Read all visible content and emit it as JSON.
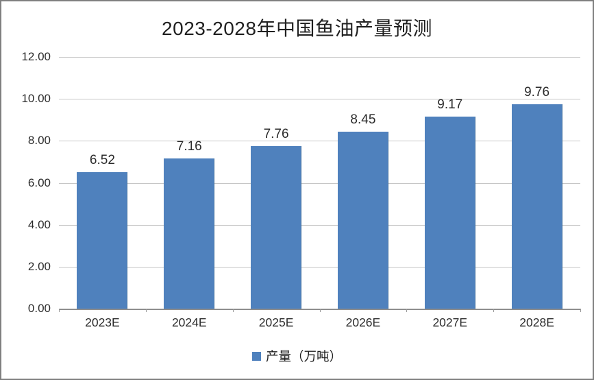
{
  "chart_data": {
    "type": "bar",
    "title": "2023-2028年中国鱼油产量预测",
    "categories": [
      "2023E",
      "2024E",
      "2025E",
      "2026E",
      "2027E",
      "2028E"
    ],
    "series": [
      {
        "name": "产量（万吨）",
        "values": [
          6.52,
          7.16,
          7.76,
          8.45,
          9.17,
          9.76
        ]
      }
    ],
    "value_labels": [
      "6.52",
      "7.16",
      "7.76",
      "8.45",
      "9.17",
      "9.76"
    ],
    "y_ticks": [
      "12.00",
      "10.00",
      "8.00",
      "6.00",
      "4.00",
      "2.00",
      "0.00"
    ],
    "ylim": [
      0,
      12
    ],
    "y_tick_step": 2,
    "grid": true,
    "legend_position": "bottom",
    "colors": {
      "bar": "#4f81bd",
      "bar_edge": "#44719f",
      "gridline": "#c6c6c6",
      "axis_line": "#8e8e8e",
      "text": "#2b2b2b",
      "frame_border": "#7f7f7f"
    }
  }
}
